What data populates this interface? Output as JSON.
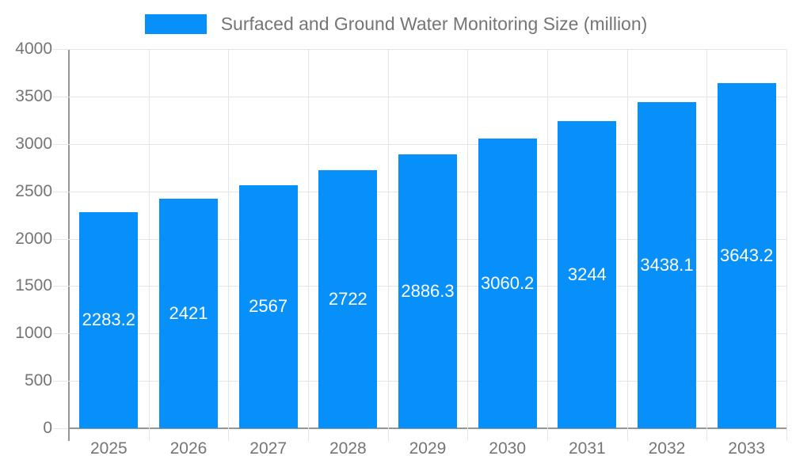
{
  "legend": {
    "label": "Surfaced and Ground Water Monitoring Size (million)"
  },
  "colors": {
    "bar": "#0890fa",
    "grid": "#e4e4e4",
    "axis": "#969696",
    "tick_text": "#757575",
    "value_text": "#ffffff",
    "background": "#ffffff"
  },
  "chart_data": {
    "type": "bar",
    "title": "Surfaced and Ground Water Monitoring Size (million)",
    "categories": [
      "2025",
      "2026",
      "2027",
      "2028",
      "2029",
      "2030",
      "2031",
      "2032",
      "2033"
    ],
    "values": [
      2283.2,
      2421,
      2567,
      2722,
      2886.3,
      3060.2,
      3244,
      3438.1,
      3643.2
    ],
    "value_labels": [
      "2283.2",
      "2421",
      "2567",
      "2722",
      "2886.3",
      "3060.2",
      "3244",
      "3438.1",
      "3643.2"
    ],
    "xlabel": "",
    "ylabel": "",
    "ylim": [
      0,
      4000
    ],
    "yticks": [
      0,
      500,
      1000,
      1500,
      2000,
      2500,
      3000,
      3500,
      4000
    ],
    "grid": true,
    "legend_entries": [
      "Surfaced and Ground Water Monitoring Size (million)"
    ],
    "legend_position": "top-center",
    "value_label_position": "inside-center"
  }
}
